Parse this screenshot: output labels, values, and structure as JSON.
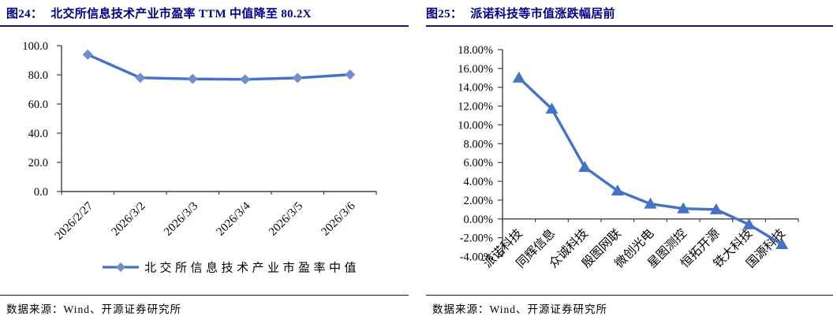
{
  "colors": {
    "title_text": "#00008B",
    "title_rule": "#17175E",
    "line": "#4472C4",
    "diamond_marker": "#6F8ECB",
    "triangle_marker": "#4472C4",
    "axis": "#404040",
    "text": "#000000"
  },
  "panels": [
    {
      "fig_no": "图24：",
      "title": "北交所信息技术产业市盈率 TTM 中值降至 80.2X",
      "source": "数据来源：Wind、开源证券研究所"
    },
    {
      "fig_no": "图25：",
      "title": "派诺科技等市值涨跌幅居前",
      "source": "数据来源：Wind、开源证券研究所"
    }
  ],
  "chart_data": [
    {
      "type": "line",
      "title": "北交所信息技术产业市盈率 TTM 中值降至 80.2X",
      "categories": [
        "2026/2/27",
        "2026/3/2",
        "2026/3/3",
        "2026/3/4",
        "2026/3/5",
        "2026/3/6"
      ],
      "series": [
        {
          "name": "北交所信息技术产业市盈率中值",
          "values": [
            93.9,
            78.0,
            77.2,
            76.9,
            77.9,
            80.2
          ]
        }
      ],
      "ylim": [
        0,
        100
      ],
      "ytick_step": 20,
      "ytick_labels": [
        "0.0",
        "20.0",
        "40.0",
        "60.0",
        "80.0",
        "100.0"
      ],
      "marker": "diamond",
      "legend_position": "bottom",
      "grid": false
    },
    {
      "type": "line",
      "title": "派诺科技等市值涨跌幅居前",
      "categories": [
        "派诺科技",
        "同辉信息",
        "众诚科技",
        "殷图网联",
        "微创光电",
        "星图测控",
        "恒拓开源",
        "铁大科技",
        "国源科技"
      ],
      "series": [
        {
          "values": [
            15.0,
            11.7,
            5.5,
            3.0,
            1.6,
            1.1,
            1.0,
            -0.6,
            -2.7
          ]
        }
      ],
      "ylim": [
        -4,
        18
      ],
      "ytick_step": 2,
      "ytick_labels": [
        "-4.00%",
        "-2.00%",
        "0.00%",
        "2.00%",
        "4.00%",
        "6.00%",
        "8.00%",
        "10.00%",
        "12.00%",
        "14.00%",
        "16.00%",
        "18.00%"
      ],
      "marker": "triangle",
      "legend_position": "none",
      "grid": false
    }
  ]
}
